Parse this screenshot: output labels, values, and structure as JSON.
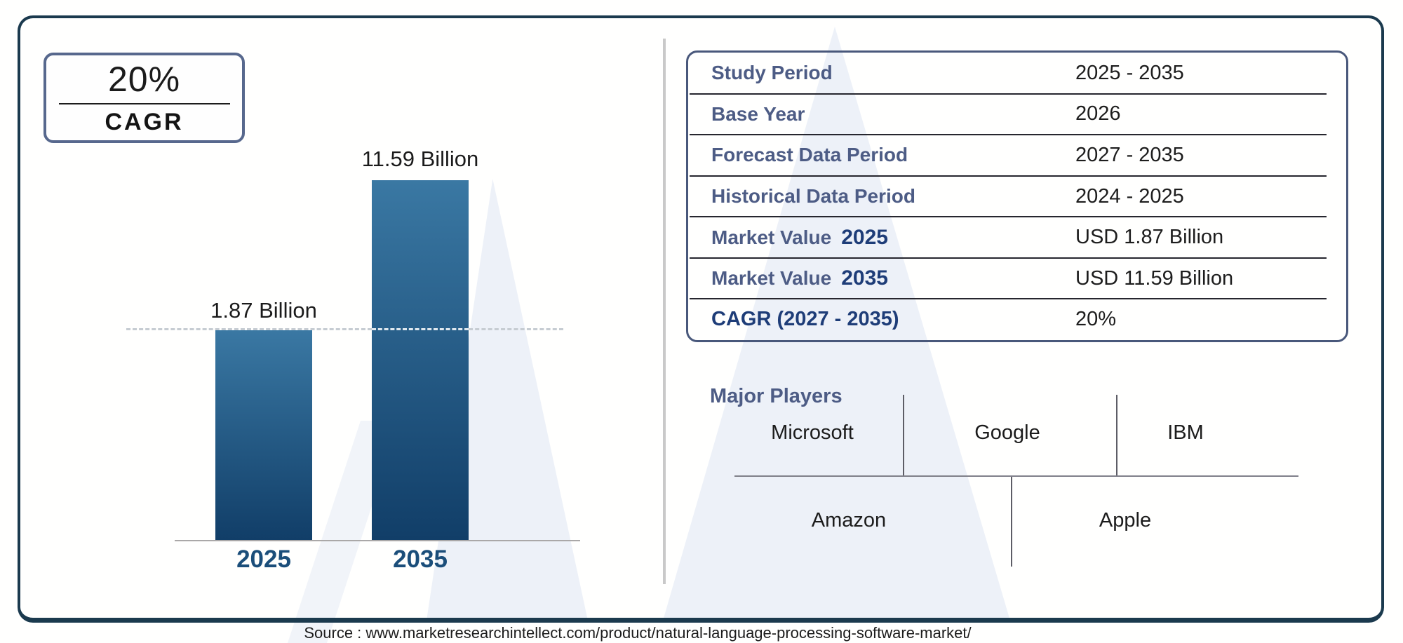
{
  "cagr_badge": {
    "value": "20%",
    "label": "CAGR"
  },
  "chart_data": {
    "type": "bar",
    "title": "",
    "xlabel": "",
    "ylabel": "",
    "unit": "USD Billion",
    "categories": [
      "2025",
      "2035"
    ],
    "values": [
      1.87,
      11.59
    ],
    "bar_labels": [
      "1.87 Billion",
      "11.59 Billion"
    ],
    "reference_line": {
      "style": "dashed",
      "at_value": 1.87
    },
    "legend": false,
    "grid": false
  },
  "info_table": {
    "rows": [
      {
        "label": "Study Period",
        "value": "2025 - 2035"
      },
      {
        "label": "Base Year",
        "value": "2026"
      },
      {
        "label": "Forecast Data Period",
        "value": "2027 - 2035"
      },
      {
        "label": "Historical Data Period",
        "value": "2024 - 2025"
      },
      {
        "label": "Market Value",
        "year": "2025",
        "value": "USD 1.87 Billion"
      },
      {
        "label": "Market Value",
        "year": "2035",
        "value": "USD 11.59 Billion"
      },
      {
        "label": "CAGR (2027 - 2035)",
        "value": "20%"
      }
    ]
  },
  "major_players": {
    "title": "Major Players",
    "top_row": [
      "Microsoft",
      "Google",
      "IBM"
    ],
    "bottom_row": [
      "Amazon",
      "Apple"
    ]
  },
  "source": {
    "text": "Source : www.marketresearchintellect.com/product/natural-language-processing-software-market/"
  },
  "colors": {
    "bar_gradient_top": "#3a78a3",
    "bar_gradient_bottom": "#113e68",
    "frame_border": "#1b3a4e",
    "badge_border": "#57688d",
    "table_border": "#49587b",
    "label_slate": "#4d5c85",
    "accent_navy": "#1e3d78",
    "axis_year_blue": "#1b4e7a",
    "watermark": "#edf1f8"
  }
}
